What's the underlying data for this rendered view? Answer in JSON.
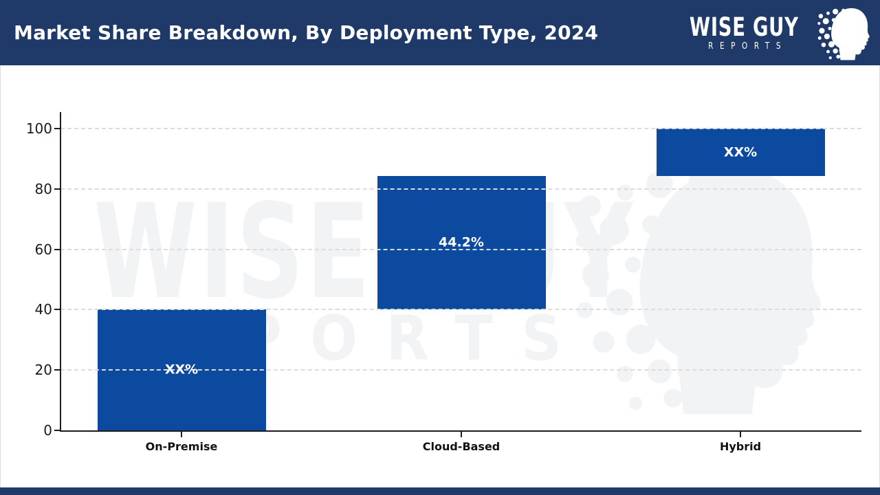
{
  "header": {
    "title": "Market Share Breakdown, By Deployment Type, 2024",
    "logo": {
      "primary": "WISE GUY",
      "secondary": "REPORTS"
    }
  },
  "watermark": {
    "line1": "WISE GUY",
    "line2": "REPORTS"
  },
  "colors": {
    "header_bg": "#1f3a68",
    "footer_bg": "#1f3a68",
    "bar": "#0b4a9e",
    "bar_label": "#ffffff",
    "grid": "#dcdcdc",
    "axis": "#1c1c1c",
    "watermark": "#f2f3f5"
  },
  "chart_data": {
    "type": "bar",
    "subtype": "floating-segment",
    "title": "Market Share Breakdown, By Deployment Type, 2024",
    "categories": [
      "On-Premise",
      "Cloud-Based",
      "Hybrid"
    ],
    "segments": [
      {
        "category": "On-Premise",
        "from": 0,
        "to": 40,
        "label": "XX%"
      },
      {
        "category": "Cloud-Based",
        "from": 40,
        "to": 84.2,
        "label": "44.2%"
      },
      {
        "category": "Hybrid",
        "from": 84.2,
        "to": 100,
        "label": "XX%"
      }
    ],
    "ylim": [
      0,
      100
    ],
    "yticks": [
      0,
      20,
      40,
      60,
      80,
      100
    ],
    "xlabel": "",
    "ylabel": "",
    "grid": "horizontal dashed",
    "legend": false
  }
}
